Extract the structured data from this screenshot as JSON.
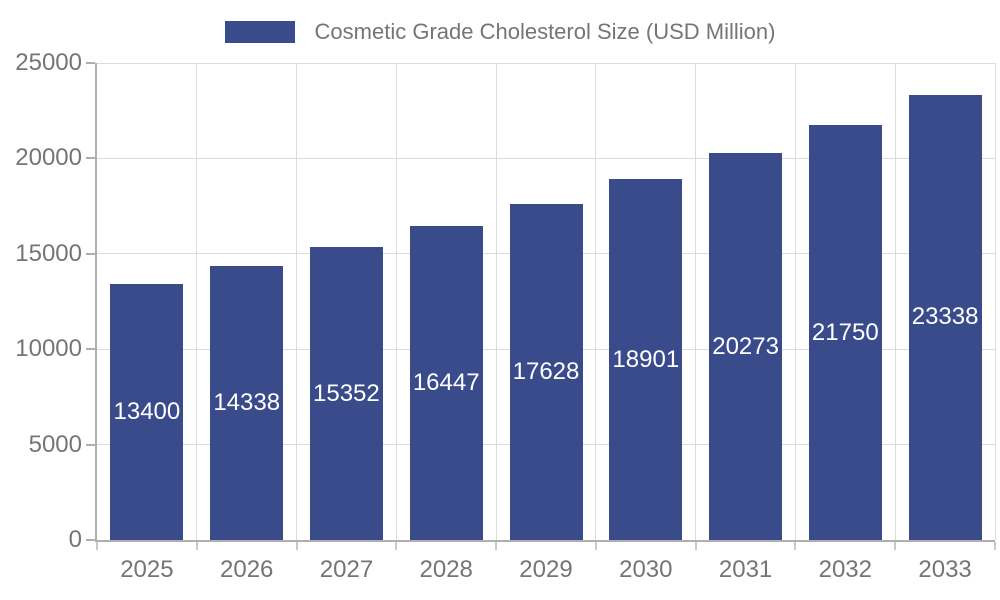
{
  "page": {
    "background": "#FFFFFF"
  },
  "legend": {
    "label": "Cosmetic Grade Cholesterol Size (USD Million)"
  },
  "chart_data": {
    "type": "bar",
    "title": "Cosmetic Grade Cholesterol Size (USD Million)",
    "categories": [
      "2025",
      "2026",
      "2027",
      "2028",
      "2029",
      "2030",
      "2031",
      "2032",
      "2033"
    ],
    "series": [
      {
        "name": "Cosmetic Grade Cholesterol Size (USD Million)",
        "values": [
          13400,
          14338,
          15352,
          16447,
          17628,
          18901,
          20273,
          21750,
          23338
        ]
      }
    ],
    "xlabel": "",
    "ylabel": "",
    "ylim": [
      0,
      25000
    ],
    "yticks": [
      0,
      5000,
      10000,
      15000,
      20000,
      25000
    ],
    "grid": true,
    "legend_position": "top",
    "value_label_position": "inside-middle",
    "colors": {
      "bar": "#3A4B8B",
      "value_label": "#FFFFFF",
      "axis_text": "#757575",
      "legend_text": "#757575",
      "grid_line": "#DCDCDC",
      "axis_line": "#AFAFAF",
      "tick_mark": "#C9C9C9"
    }
  }
}
